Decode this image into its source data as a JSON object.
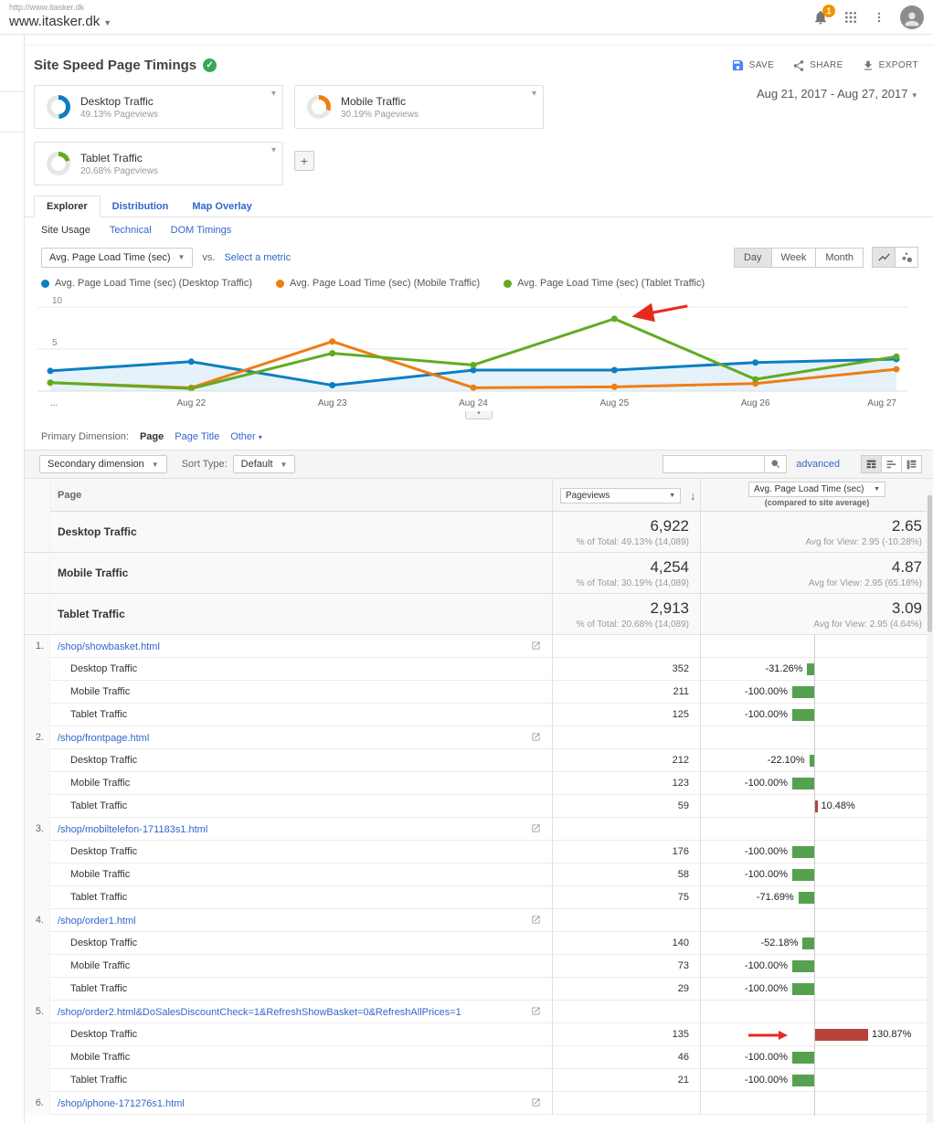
{
  "topbar": {
    "url": "http://www.itasker.dk",
    "site": "www.itasker.dk",
    "bell_badge": "1"
  },
  "header": {
    "title": "Site Speed Page Timings",
    "save": "SAVE",
    "share": "SHARE",
    "export": "EXPORT"
  },
  "date_range": "Aug 21, 2017 - Aug 27, 2017",
  "add_segment": "+",
  "segments": [
    {
      "label": "Desktop Traffic",
      "sub": "49.13% Pageviews",
      "pct": 49.13,
      "color": "#0d7ec2"
    },
    {
      "label": "Mobile Traffic",
      "sub": "30.19% Pageviews",
      "pct": 30.19,
      "color": "#ef7d14"
    },
    {
      "label": "Tablet Traffic",
      "sub": "20.68% Pageviews",
      "pct": 20.68,
      "color": "#61ab23"
    }
  ],
  "tabs": [
    {
      "label": "Explorer"
    },
    {
      "label": "Distribution"
    },
    {
      "label": "Map Overlay"
    }
  ],
  "subtabs": [
    {
      "label": "Site Usage"
    },
    {
      "label": "Technical"
    },
    {
      "label": "DOM Timings"
    }
  ],
  "metric_bar": {
    "metric_dropdown": "Avg. Page Load Time (sec)",
    "vs": "vs.",
    "select_metric": "Select a metric",
    "granularity": [
      {
        "label": "Day"
      },
      {
        "label": "Week"
      },
      {
        "label": "Month"
      }
    ]
  },
  "chart_data": {
    "type": "line",
    "x": [
      "...",
      "Aug 22",
      "Aug 23",
      "Aug 24",
      "Aug 25",
      "Aug 26",
      "Aug 27"
    ],
    "ylim": [
      0,
      10
    ],
    "yticks": [
      5,
      10
    ],
    "series": [
      {
        "name": "Avg. Page Load Time (sec) (Desktop Traffic)",
        "color": "#0d7ec2",
        "fill": true,
        "values": [
          2.4,
          3.5,
          0.7,
          2.5,
          2.5,
          3.4,
          3.8
        ]
      },
      {
        "name": "Avg. Page Load Time (sec) (Mobile Traffic)",
        "color": "#ef7d14",
        "values": [
          1.0,
          0.4,
          5.9,
          0.4,
          0.5,
          0.9,
          2.6
        ]
      },
      {
        "name": "Avg. Page Load Time (sec) (Tablet Traffic)",
        "color": "#61ab23",
        "values": [
          1.0,
          0.3,
          4.5,
          3.1,
          8.6,
          1.4,
          4.1
        ]
      }
    ],
    "annotation": "red arrow pointing at Tablet Traffic peak on Aug 25"
  },
  "primary_dimension": {
    "label": "Primary Dimension:",
    "active": "Page",
    "links": [
      "Page Title",
      "Other"
    ]
  },
  "toolbar": {
    "secondary": "Secondary dimension",
    "sort_label": "Sort Type:",
    "sort_value": "Default",
    "advanced": "advanced"
  },
  "table": {
    "headers": {
      "page": "Page",
      "pageviews": "Pageviews",
      "metric": "Avg. Page Load Time (sec)",
      "metric_sub": "(compared to site average)"
    },
    "summary": [
      {
        "name": "Desktop Traffic",
        "pageviews": "6,922",
        "pv_sub": "% of Total: 49.13% (14,089)",
        "metric": "2.65",
        "metric_sub": "Avg for View: 2.95 (-10.28%)"
      },
      {
        "name": "Mobile Traffic",
        "pageviews": "4,254",
        "pv_sub": "% of Total: 30.19% (14,089)",
        "metric": "4.87",
        "metric_sub": "Avg for View: 2.95 (65.18%)"
      },
      {
        "name": "Tablet Traffic",
        "pageviews": "2,913",
        "pv_sub": "% of Total: 20.68% (14,089)",
        "metric": "3.09",
        "metric_sub": "Avg for View: 2.95 (4.64%)"
      }
    ],
    "rows": [
      {
        "num": "1.",
        "url": "/shop/showbasket.html",
        "cells": [
          {
            "segment": "Desktop Traffic",
            "pageviews": "352",
            "delta": "-31.26%",
            "value": -31.26
          },
          {
            "segment": "Mobile Traffic",
            "pageviews": "211",
            "delta": "-100.00%",
            "value": -100
          },
          {
            "segment": "Tablet Traffic",
            "pageviews": "125",
            "delta": "-100.00%",
            "value": -100
          }
        ]
      },
      {
        "num": "2.",
        "url": "/shop/frontpage.html",
        "cells": [
          {
            "segment": "Desktop Traffic",
            "pageviews": "212",
            "delta": "-22.10%",
            "value": -22.1
          },
          {
            "segment": "Mobile Traffic",
            "pageviews": "123",
            "delta": "-100.00%",
            "value": -100
          },
          {
            "segment": "Tablet Traffic",
            "pageviews": "59",
            "delta": "10.48%",
            "value": 10.48
          }
        ]
      },
      {
        "num": "3.",
        "url": "/shop/mobiltelefon-171183s1.html",
        "cells": [
          {
            "segment": "Desktop Traffic",
            "pageviews": "176",
            "delta": "-100.00%",
            "value": -100
          },
          {
            "segment": "Mobile Traffic",
            "pageviews": "58",
            "delta": "-100.00%",
            "value": -100
          },
          {
            "segment": "Tablet Traffic",
            "pageviews": "75",
            "delta": "-71.69%",
            "value": -71.69
          }
        ]
      },
      {
        "num": "4.",
        "url": "/shop/order1.html",
        "cells": [
          {
            "segment": "Desktop Traffic",
            "pageviews": "140",
            "delta": "-52.18%",
            "value": -52.18
          },
          {
            "segment": "Mobile Traffic",
            "pageviews": "73",
            "delta": "-100.00%",
            "value": -100
          },
          {
            "segment": "Tablet Traffic",
            "pageviews": "29",
            "delta": "-100.00%",
            "value": -100
          }
        ]
      },
      {
        "num": "5.",
        "url": "/shop/order2.html&DoSalesDiscountCheck=1&RefreshShowBasket=0&RefreshAllPrices=1",
        "cells": [
          {
            "segment": "Desktop Traffic",
            "pageviews": "135",
            "delta": "130.87%",
            "value": 130.87,
            "arrow": true
          },
          {
            "segment": "Mobile Traffic",
            "pageviews": "46",
            "delta": "-100.00%",
            "value": -100
          },
          {
            "segment": "Tablet Traffic",
            "pageviews": "21",
            "delta": "-100.00%",
            "value": -100
          }
        ]
      },
      {
        "num": "6.",
        "url": "/shop/iphone-171276s1.html",
        "cells": []
      }
    ]
  }
}
